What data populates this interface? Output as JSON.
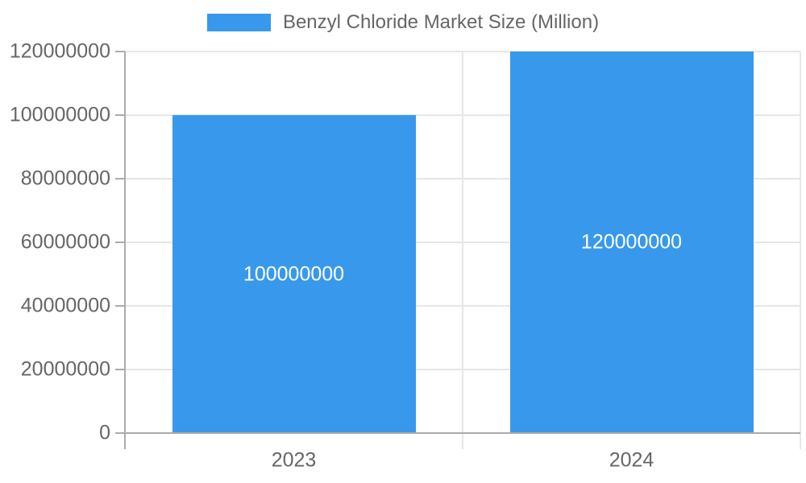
{
  "legend": {
    "label": "Benzyl Chloride Market Size (Million)"
  },
  "chart_data": {
    "type": "bar",
    "title": "Benzyl Chloride Market Size (Million)",
    "categories": [
      "2023",
      "2024"
    ],
    "values": [
      100000000,
      120000000
    ],
    "bar_labels": [
      "100000000",
      "120000000"
    ],
    "xlabel": "",
    "ylabel": "",
    "ylim": [
      0,
      120000000
    ],
    "ytick_step": 20000000,
    "ytick_labels": [
      "0",
      "20000000",
      "40000000",
      "60000000",
      "80000000",
      "100000000",
      "120000000"
    ],
    "grid": true,
    "legend_position": "top",
    "colors": {
      "bar": "#3899ec",
      "text": "#666666",
      "grid": "#e6e6e6",
      "axis": "#ababab",
      "bar_label": "#ffffff",
      "background": "#ffffff"
    }
  }
}
